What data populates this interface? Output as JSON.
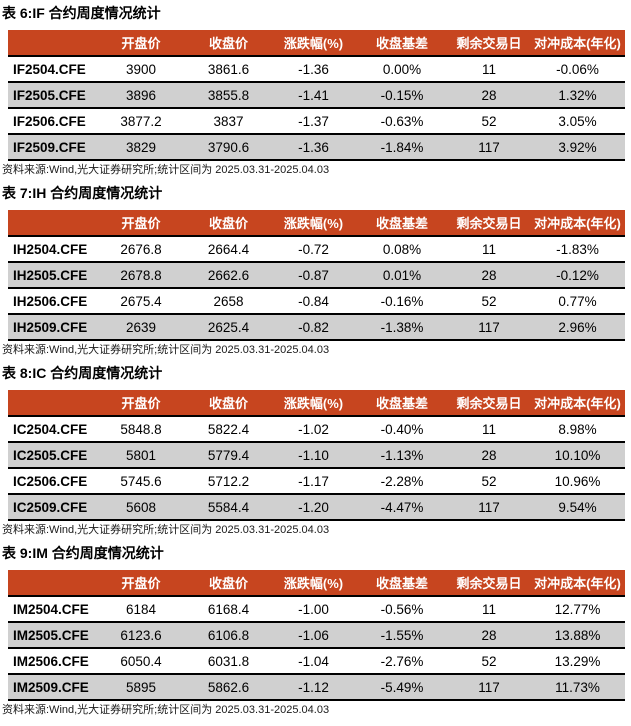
{
  "colors": {
    "header_bg": "#C7451F",
    "header_text": "#FFFFFF",
    "stripe_bg": "#D0D0D0",
    "border": "#000000"
  },
  "columns": [
    "",
    "开盘价",
    "收盘价",
    "涨跌幅(%)",
    "收盘基差",
    "剩余交易日",
    "对冲成本(年化)"
  ],
  "source_note": "资料来源:Wind,光大证券研究所;统计区间为 2025.03.31-2025.04.03",
  "tables": [
    {
      "title": "表 6:IF 合约周度情况统计",
      "rows": [
        [
          "IF2504.CFE",
          "3900",
          "3861.6",
          "-1.36",
          "0.00%",
          "11",
          "-0.06%"
        ],
        [
          "IF2505.CFE",
          "3896",
          "3855.8",
          "-1.41",
          "-0.15%",
          "28",
          "1.32%"
        ],
        [
          "IF2506.CFE",
          "3877.2",
          "3837",
          "-1.37",
          "-0.63%",
          "52",
          "3.05%"
        ],
        [
          "IF2509.CFE",
          "3829",
          "3790.6",
          "-1.36",
          "-1.84%",
          "117",
          "3.92%"
        ]
      ]
    },
    {
      "title": "表 7:IH 合约周度情况统计",
      "rows": [
        [
          "IH2504.CFE",
          "2676.8",
          "2664.4",
          "-0.72",
          "0.08%",
          "11",
          "-1.83%"
        ],
        [
          "IH2505.CFE",
          "2678.8",
          "2662.6",
          "-0.87",
          "0.01%",
          "28",
          "-0.12%"
        ],
        [
          "IH2506.CFE",
          "2675.4",
          "2658",
          "-0.84",
          "-0.16%",
          "52",
          "0.77%"
        ],
        [
          "IH2509.CFE",
          "2639",
          "2625.4",
          "-0.82",
          "-1.38%",
          "117",
          "2.96%"
        ]
      ]
    },
    {
      "title": "表 8:IC 合约周度情况统计",
      "rows": [
        [
          "IC2504.CFE",
          "5848.8",
          "5822.4",
          "-1.02",
          "-0.40%",
          "11",
          "8.98%"
        ],
        [
          "IC2505.CFE",
          "5801",
          "5779.4",
          "-1.10",
          "-1.13%",
          "28",
          "10.10%"
        ],
        [
          "IC2506.CFE",
          "5745.6",
          "5712.2",
          "-1.17",
          "-2.28%",
          "52",
          "10.96%"
        ],
        [
          "IC2509.CFE",
          "5608",
          "5584.4",
          "-1.20",
          "-4.47%",
          "117",
          "9.54%"
        ]
      ]
    },
    {
      "title": "表 9:IM 合约周度情况统计",
      "rows": [
        [
          "IM2504.CFE",
          "6184",
          "6168.4",
          "-1.00",
          "-0.56%",
          "11",
          "12.77%"
        ],
        [
          "IM2505.CFE",
          "6123.6",
          "6106.8",
          "-1.06",
          "-1.55%",
          "28",
          "13.88%"
        ],
        [
          "IM2506.CFE",
          "6050.4",
          "6031.8",
          "-1.04",
          "-2.76%",
          "52",
          "13.29%"
        ],
        [
          "IM2509.CFE",
          "5895",
          "5862.6",
          "-1.12",
          "-5.49%",
          "117",
          "11.73%"
        ]
      ]
    }
  ]
}
